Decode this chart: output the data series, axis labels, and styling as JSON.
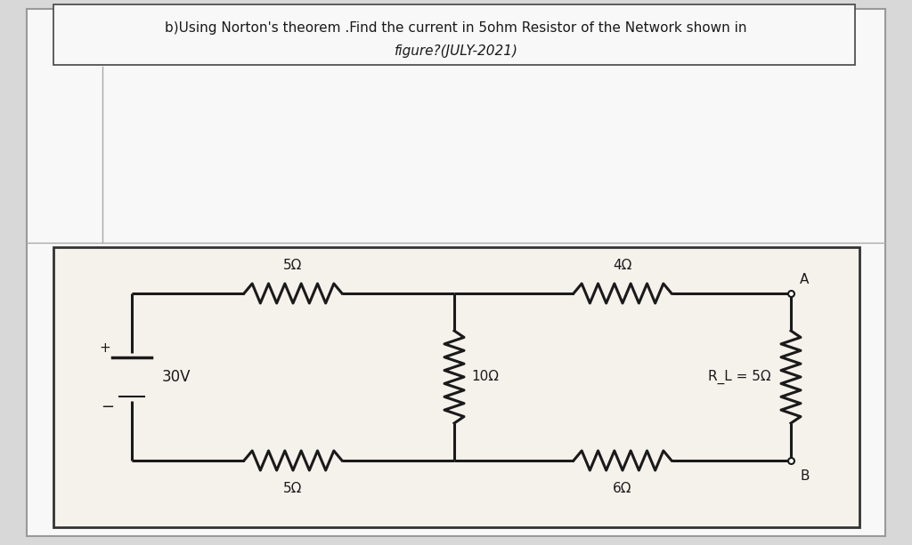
{
  "title_line1": "b)Using Norton's theorem .Find the current in 5ohm Resistor of the Network shown in",
  "title_line2": "figure?(JULY-2021)",
  "bg_color": "#d8d8d8",
  "paper_color": "#f8f8f8",
  "circuit_bg": "#f5f2ec",
  "resistor_5ohm_top_label": "5Ω",
  "resistor_4ohm_label": "4Ω",
  "resistor_10ohm_label": "10Ω",
  "resistor_5ohm_bot_label": "5Ω",
  "resistor_6ohm_label": "6Ω",
  "resistor_RL_label": "R_L = 5Ω",
  "voltage_label": "30V",
  "node_A": "A",
  "node_B": "B",
  "line_color": "#1a1a1a",
  "font_color": "#1a1a1a",
  "title_font": "DejaVu Sans",
  "circuit_font": "DejaVu Sans"
}
